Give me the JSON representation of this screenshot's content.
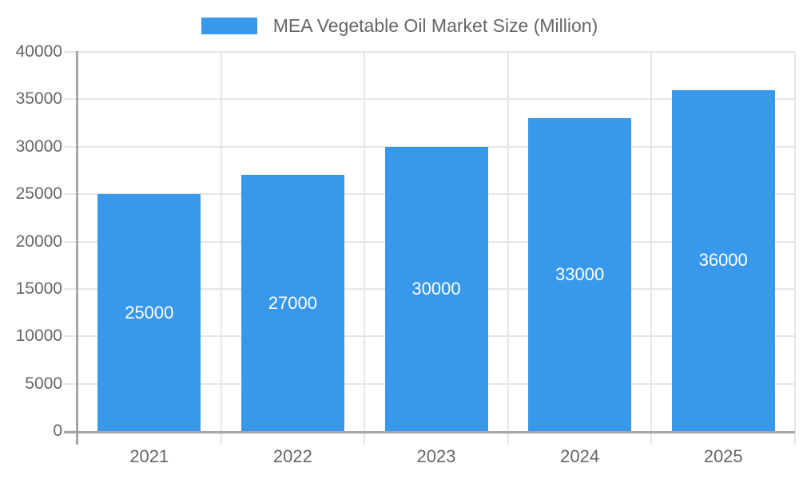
{
  "legend": {
    "label": "MEA Vegetable Oil Market Size (Million)"
  },
  "chart_data": {
    "type": "bar",
    "title": "MEA Vegetable Oil Market Size (Million)",
    "categories": [
      "2021",
      "2022",
      "2023",
      "2024",
      "2025"
    ],
    "values": [
      25000,
      27000,
      30000,
      33000,
      36000
    ],
    "bar_labels": [
      "25000",
      "27000",
      "30000",
      "33000",
      "36000"
    ],
    "xlabel": "",
    "ylabel": "",
    "ylim": [
      0,
      40000
    ],
    "ytick_step": 5000,
    "yticks": [
      0,
      5000,
      10000,
      15000,
      20000,
      25000,
      30000,
      35000,
      40000
    ],
    "grid": true,
    "legend_position": "top-center",
    "colors": {
      "bar": "#3898ec",
      "bar_label": "#ffffff",
      "grid": "#e6e6e6",
      "axis": "#a6a6a6",
      "tick_label": "#666666",
      "background": "#ffffff"
    }
  }
}
